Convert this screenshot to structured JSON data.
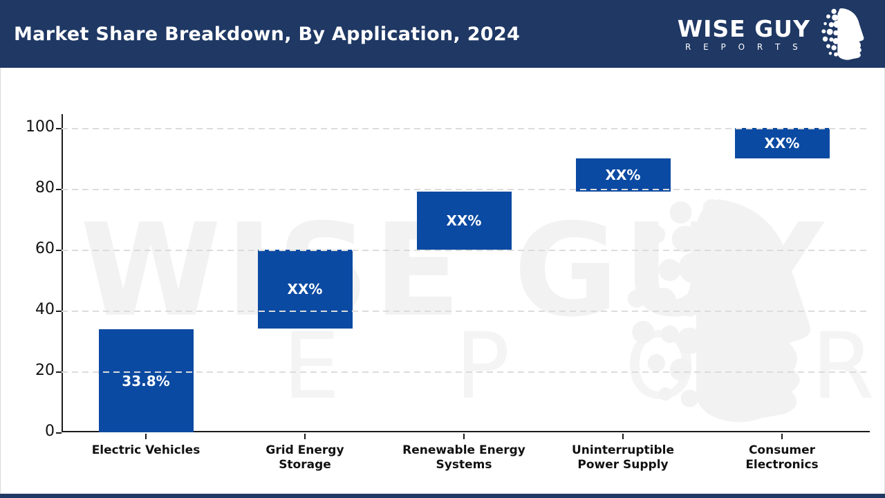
{
  "header": {
    "title": "Market Share Breakdown, By Application, 2024",
    "logo_text": "WISE GUY",
    "logo_subtext": "R E P O R T S"
  },
  "watermark": {
    "line1": "WISE GUY",
    "line2": "R E P O R T S"
  },
  "chart_data": {
    "type": "bar",
    "variant": "floating-waterfall",
    "title": "Market Share Breakdown, By Application, 2024",
    "categories": [
      "Electric Vehicles",
      "Grid Energy Storage",
      "Renewable Energy Systems",
      "Uninterruptible Power Supply",
      "Consumer Electronics"
    ],
    "categories_lines": [
      [
        "Electric Vehicles"
      ],
      [
        "Grid Energy",
        "Storage"
      ],
      [
        "Renewable Energy",
        "Systems"
      ],
      [
        "Uninterruptible",
        "Power Supply"
      ],
      [
        "Consumer",
        "Electronics"
      ]
    ],
    "segments": [
      {
        "category": "Electric Vehicles",
        "start": 0,
        "end": 33.8,
        "label": "33.8%"
      },
      {
        "category": "Grid Energy Storage",
        "start": 34,
        "end": 60,
        "label": "XX%"
      },
      {
        "category": "Renewable Energy Systems",
        "start": 60,
        "end": 79,
        "label": "XX%"
      },
      {
        "category": "Uninterruptible Power Supply",
        "start": 79,
        "end": 90,
        "label": "XX%"
      },
      {
        "category": "Consumer Electronics",
        "start": 90,
        "end": 100,
        "label": "XX%"
      }
    ],
    "y_ticks": [
      0,
      20,
      40,
      60,
      80,
      100
    ],
    "ylim": [
      0,
      104.5
    ],
    "xlabel": "",
    "ylabel": "",
    "grid": true,
    "grid_style": "dashed",
    "grid_on_top": true,
    "legend": null,
    "colors": {
      "bar": "#0b4aa2",
      "bar_label": "#ffffff",
      "axis": "#1a1a1a",
      "grid": "#dcdcdc",
      "tick_label": "#111111",
      "header_bg": "#1f3864",
      "footer_bg": "#1f3864",
      "watermark": "#f2f2f2"
    }
  }
}
